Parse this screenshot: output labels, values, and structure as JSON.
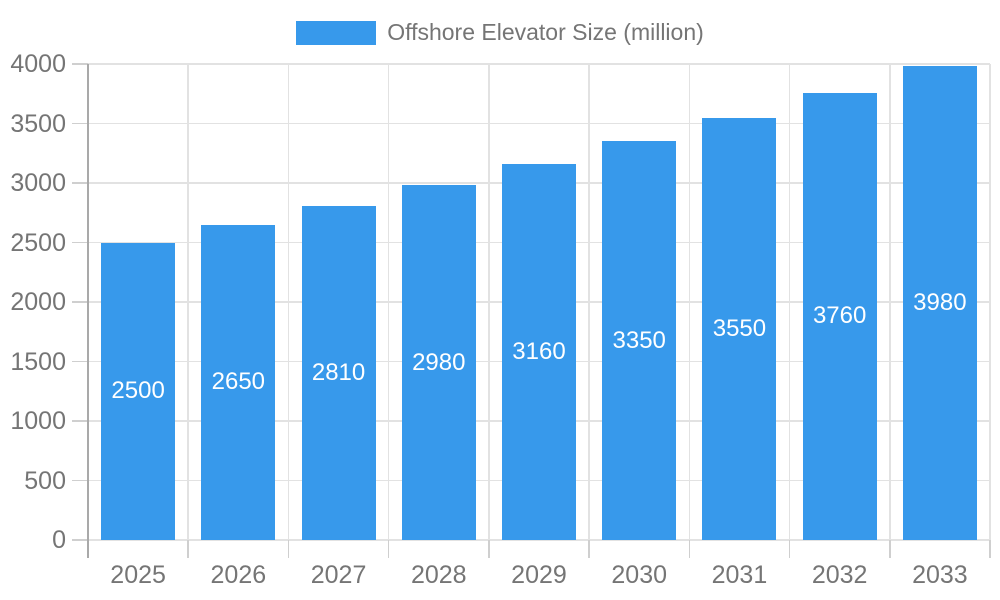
{
  "legend": {
    "label": "Offshore Elevator Size (million)"
  },
  "colors": {
    "bar": "#3799EB",
    "grid": "#E2E2E2",
    "tick": "#CFCFCF",
    "axis_line": "#A9A9A9",
    "label_text": "#757575",
    "bar_label_text": "#FFFFFF"
  },
  "chart_data": {
    "type": "bar",
    "title": "",
    "categories": [
      "2025",
      "2026",
      "2027",
      "2028",
      "2029",
      "2030",
      "2031",
      "2032",
      "2033"
    ],
    "series": [
      {
        "name": "Offshore Elevator Size (million)",
        "values": [
          2500,
          2650,
          2810,
          2980,
          3160,
          3350,
          3550,
          3760,
          3980
        ]
      }
    ],
    "bar_labels": [
      "2500",
      "2650",
      "2810",
      "2980",
      "3160",
      "3350",
      "3550",
      "3760",
      "3980"
    ],
    "xlabel": "",
    "ylabel": "",
    "ylim": [
      0,
      4000
    ],
    "yticks": [
      0,
      500,
      1000,
      1500,
      2000,
      2500,
      3000,
      3500,
      4000
    ],
    "grid": true,
    "legend_position": "top",
    "bar_value_labels_inside": true
  }
}
